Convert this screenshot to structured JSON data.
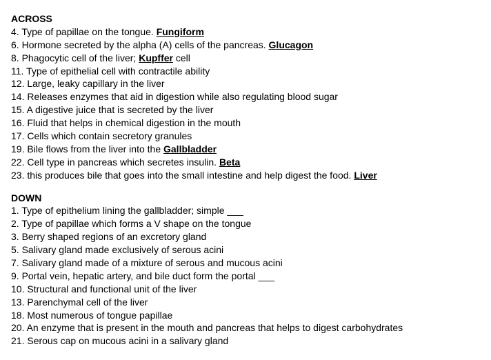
{
  "across": {
    "header": "ACROSS",
    "clues": [
      {
        "num": "4.",
        "text": "Type of papillae on the tongue. ",
        "answer": "Fungiform",
        "tail": ""
      },
      {
        "num": "6.",
        "text": "Hormone secreted by the alpha (A) cells of the pancreas. ",
        "answer": "Glucagon",
        "tail": ""
      },
      {
        "num": "8.",
        "text": "Phagocytic cell of the liver; ",
        "answer": "Kupffer",
        "tail": " cell"
      },
      {
        "num": "11.",
        "text": "Type of epithelial cell with contractile ability",
        "answer": "",
        "tail": ""
      },
      {
        "num": "12.",
        "text": "Large, leaky capillary in the liver",
        "answer": "",
        "tail": ""
      },
      {
        "num": "14.",
        "text": "Releases enzymes that aid in digestion while also regulating blood sugar",
        "answer": "",
        "tail": ""
      },
      {
        "num": "15.",
        "text": "A digestive juice that is secreted by the liver",
        "answer": "",
        "tail": ""
      },
      {
        "num": "16.",
        "text": "Fluid that helps in chemical digestion in the mouth",
        "answer": "",
        "tail": ""
      },
      {
        "num": "17.",
        "text": "Cells which contain secretory granules",
        "answer": "",
        "tail": ""
      },
      {
        "num": "19.",
        "text": "Bile flows from the liver into the ",
        "answer": "Gallbladder",
        "tail": ""
      },
      {
        "num": "22.",
        "text": "Cell type in pancreas which secretes insulin. ",
        "answer": "Beta",
        "tail": ""
      },
      {
        "num": "23.",
        "text": "this produces bile that goes into the small intestine and help digest the food. ",
        "answer": "Liver",
        "tail": ""
      }
    ]
  },
  "down": {
    "header": "DOWN",
    "clues": [
      {
        "num": "1.",
        "text": "Type of epithelium lining the gallbladder; simple ___",
        "answer": "",
        "tail": ""
      },
      {
        "num": "2.",
        "text": "Type of papillae which forms a V shape on the tongue",
        "answer": "",
        "tail": ""
      },
      {
        "num": "3.",
        "text": "Berry shaped regions of an excretory gland",
        "answer": "",
        "tail": ""
      },
      {
        "num": "5.",
        "text": "Salivary gland made exclusively of serous acini",
        "answer": "",
        "tail": ""
      },
      {
        "num": "7.",
        "text": "Salivary gland made of a mixture of serous and mucous acini",
        "answer": "",
        "tail": ""
      },
      {
        "num": "9.",
        "text": "Portal vein, hepatic artery, and bile duct form the portal ___",
        "answer": "",
        "tail": ""
      },
      {
        "num": "10.",
        "text": "Structural and functional unit of the liver",
        "answer": "",
        "tail": ""
      },
      {
        "num": "13.",
        "text": "Parenchymal cell of the liver",
        "answer": "",
        "tail": ""
      },
      {
        "num": "18.",
        "text": "Most numerous of tongue papillae",
        "answer": "",
        "tail": ""
      },
      {
        "num": "20.",
        "text": "An enzyme that is present in the mouth and pancreas that helps to digest carbohydrates",
        "answer": "",
        "tail": ""
      },
      {
        "num": "21.",
        "text": "Serous cap on mucous acini in a salivary gland",
        "answer": "",
        "tail": ""
      }
    ]
  }
}
